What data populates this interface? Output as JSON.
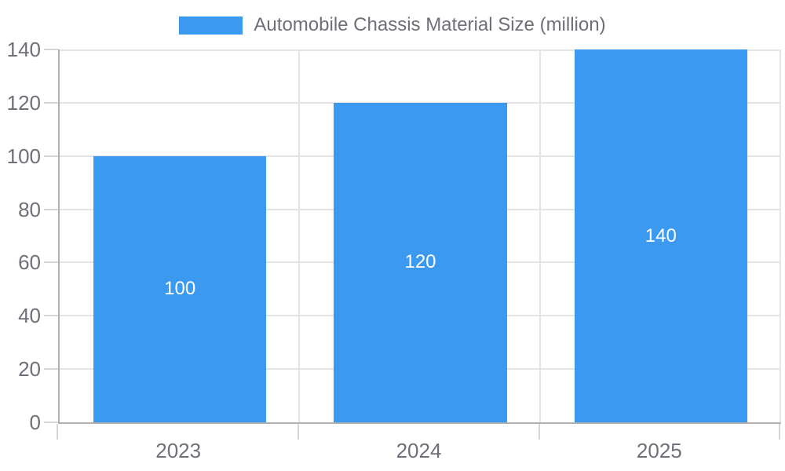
{
  "chart_data": {
    "type": "bar",
    "title": "Automobile Chassis Material Size (million)",
    "categories": [
      "2023",
      "2024",
      "2025"
    ],
    "series": [
      {
        "name": "Automobile Chassis Material Size (million)",
        "values": [
          100,
          120,
          140
        ]
      }
    ],
    "data_labels": [
      "100",
      "120",
      "140"
    ],
    "xlabel": "",
    "ylabel": "",
    "ylim": [
      0,
      140
    ],
    "yticks": [
      0,
      20,
      40,
      60,
      80,
      100,
      120,
      140
    ],
    "ytick_labels": [
      "0",
      "20",
      "40",
      "60",
      "80",
      "100",
      "120",
      "140"
    ],
    "legend_position": "top-center",
    "grid": true,
    "colors": {
      "bar": "#3b9aef",
      "grid": "#e4e4e6",
      "axis": "#b0b0b0",
      "tick": "#d6d6d8",
      "tick_text": "#6e7079",
      "legend_text": "#6e7079",
      "data_label_text": "#ffffff",
      "background": "#ffffff"
    }
  }
}
